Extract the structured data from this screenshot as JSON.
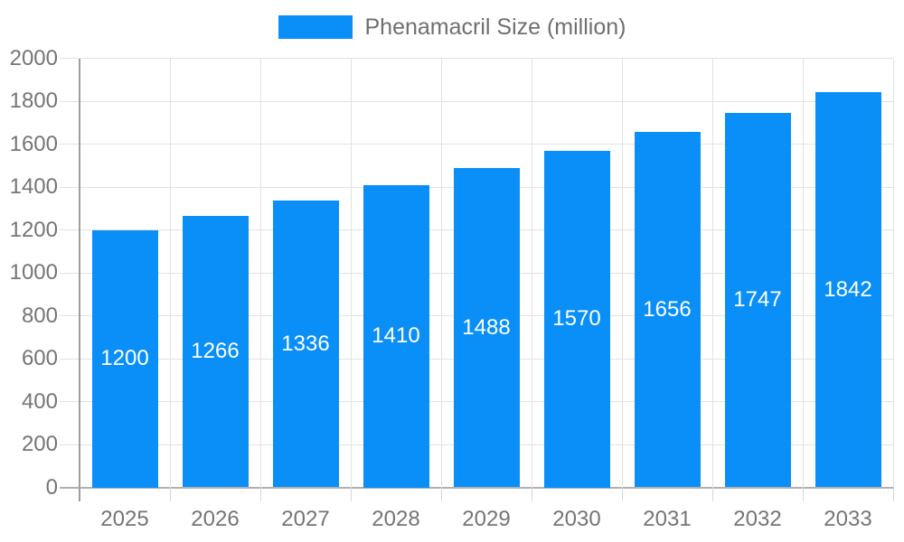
{
  "chart_data": {
    "type": "bar",
    "title": "Phenamacril Size (million)",
    "series_name": "Phenamacril Size (million)",
    "categories": [
      "2025",
      "2026",
      "2027",
      "2028",
      "2029",
      "2030",
      "2031",
      "2032",
      "2033"
    ],
    "values": [
      1200,
      1266,
      1336,
      1410,
      1488,
      1570,
      1656,
      1747,
      1842
    ],
    "xlabel": "",
    "ylabel": "",
    "ylim": [
      0,
      2000
    ],
    "yticks": [
      0,
      200,
      400,
      600,
      800,
      1000,
      1200,
      1400,
      1600,
      1800,
      2000
    ],
    "grid": true,
    "legend_position": "top",
    "value_label_position": "inside-center"
  },
  "colors": {
    "bar": "#0a8ff9",
    "axis_text": "#757575",
    "legend_text": "#6f6f6f",
    "gridline": "#e2e2e2",
    "axis_line": "#9e9e9e",
    "baseline": "#b0b0b0",
    "tick": "#d6d6d6",
    "value_label": "#ffffff",
    "background": "#ffffff"
  }
}
